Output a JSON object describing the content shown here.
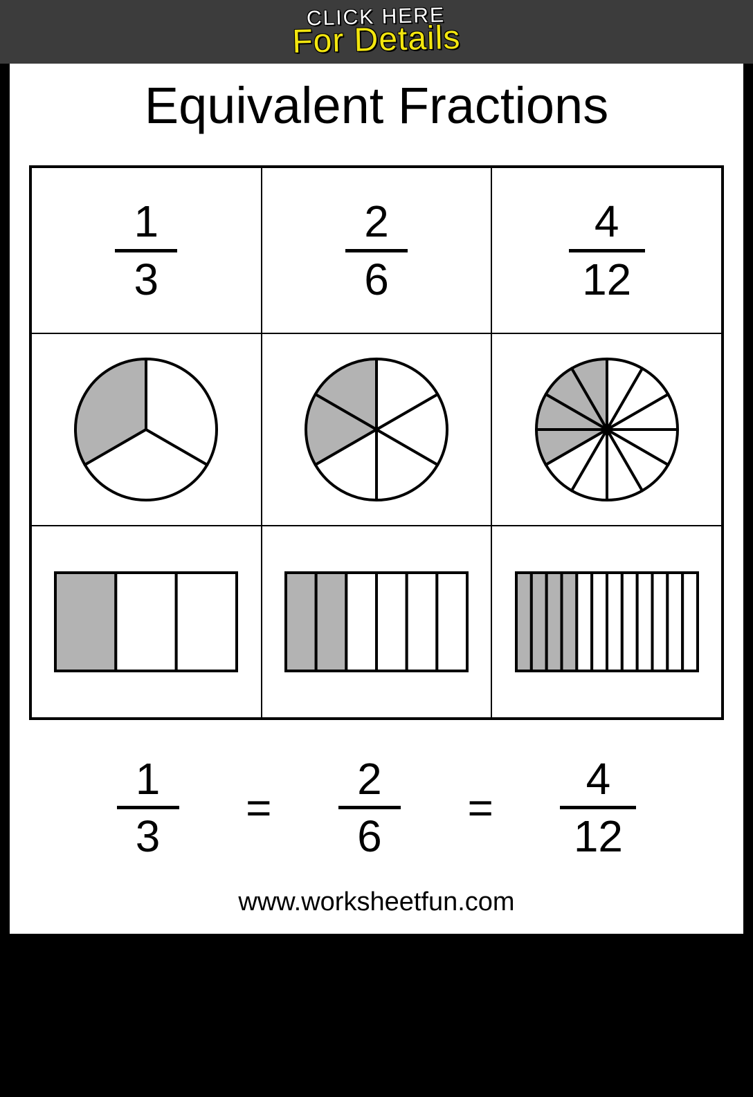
{
  "banner": {
    "line1": "CLICK HERE",
    "line2": "For Details",
    "bg_color": "#3c3c3c",
    "line1_color": "#ffffff",
    "line2_color": "#f3e60f"
  },
  "page": {
    "title": "Equivalent Fractions",
    "bg_color": "#ffffff",
    "text_color": "#000000",
    "title_fontsize": 74
  },
  "fractions": [
    {
      "numerator": "1",
      "denominator": "3"
    },
    {
      "numerator": "2",
      "denominator": "6"
    },
    {
      "numerator": "4",
      "denominator": "12"
    }
  ],
  "circles": [
    {
      "slices": 3,
      "shaded": 1,
      "shade_color": "#b3b3b3",
      "stroke": "#000000",
      "stroke_width": 4,
      "start_angle": -90
    },
    {
      "slices": 6,
      "shaded": 2,
      "shade_color": "#b3b3b3",
      "stroke": "#000000",
      "stroke_width": 4,
      "start_angle": -90
    },
    {
      "slices": 12,
      "shaded": 4,
      "shade_color": "#b3b3b3",
      "stroke": "#000000",
      "stroke_width": 4,
      "start_angle": -90
    }
  ],
  "bars": [
    {
      "parts": 3,
      "shaded": 1,
      "shade_color": "#b3b3b3",
      "stroke": "#000000",
      "stroke_width": 4
    },
    {
      "parts": 6,
      "shaded": 2,
      "shade_color": "#b3b3b3",
      "stroke": "#000000",
      "stroke_width": 4
    },
    {
      "parts": 12,
      "shaded": 4,
      "shade_color": "#b3b3b3",
      "stroke": "#000000",
      "stroke_width": 4
    }
  ],
  "equation": {
    "terms": [
      {
        "numerator": "1",
        "denominator": "3"
      },
      {
        "numerator": "2",
        "denominator": "6"
      },
      {
        "numerator": "4",
        "denominator": "12"
      }
    ],
    "sign": "="
  },
  "footer": "www.worksheetfun.com"
}
